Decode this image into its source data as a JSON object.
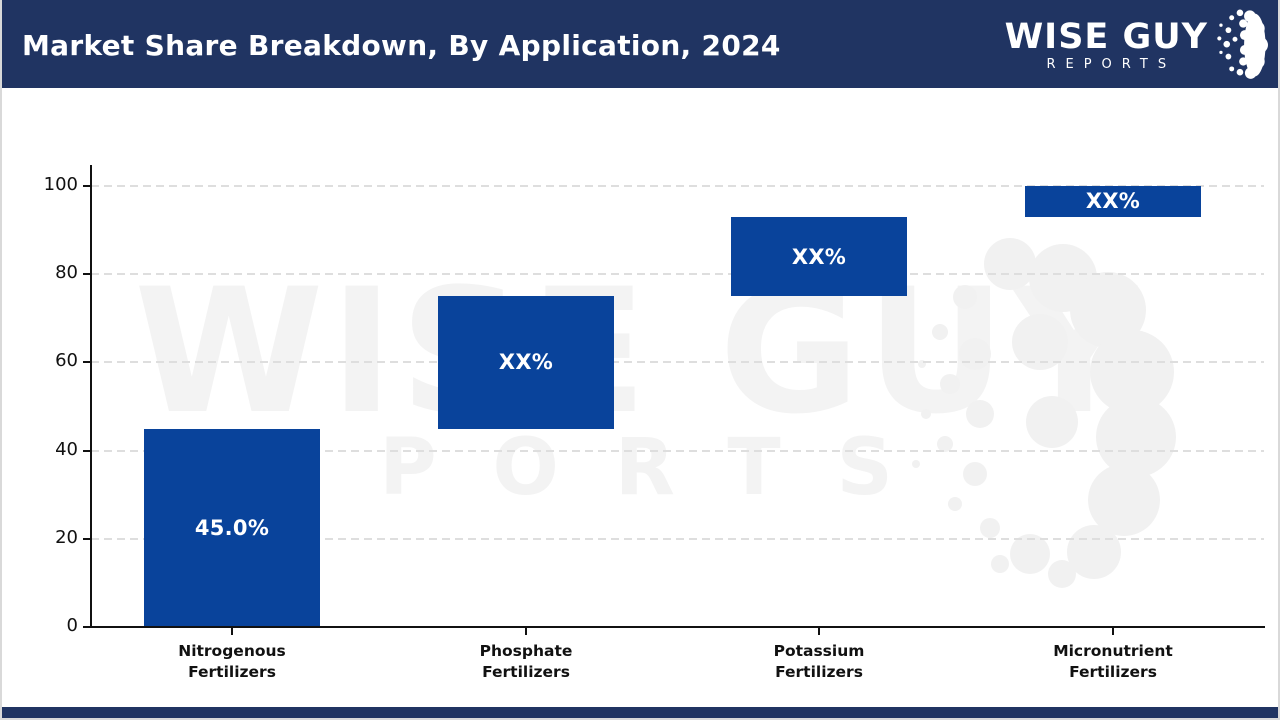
{
  "header": {
    "title": "Market Share Breakdown, By Application, 2024",
    "logo": {
      "name": "Wise Guy Reports",
      "line1": "WISE GUY",
      "line2": "REPORTS"
    }
  },
  "watermark": {
    "line1": "WISE GUY",
    "line2": "REPORTS"
  },
  "chart_data": {
    "type": "bar",
    "subtype": "waterfall",
    "title": "Market Share Breakdown, By Application, 2024",
    "categories": [
      "Nitrogenous Fertilizers",
      "Phosphate Fertilizers",
      "Potassium Fertilizers",
      "Micronutrient Fertilizers"
    ],
    "category_lines": [
      [
        "Nitrogenous",
        "Fertilizers"
      ],
      [
        "Phosphate",
        "Fertilizers"
      ],
      [
        "Potassium",
        "Fertilizers"
      ],
      [
        "Micronutrient",
        "Fertilizers"
      ]
    ],
    "bars": [
      {
        "category": "Nitrogenous Fertilizers",
        "start": 0,
        "end": 45,
        "label": "45.0%"
      },
      {
        "category": "Phosphate Fertilizers",
        "start": 45,
        "end": 75,
        "label": "XX%"
      },
      {
        "category": "Potassium Fertilizers",
        "start": 75,
        "end": 93,
        "label": "XX%"
      },
      {
        "category": "Micronutrient Fertilizers",
        "start": 93,
        "end": 100,
        "label": "XX%"
      }
    ],
    "ylim": [
      0,
      100
    ],
    "yticks": [
      0,
      20,
      40,
      60,
      80,
      100
    ],
    "xlabel": "",
    "ylabel": "",
    "grid": "horizontal-dashed",
    "legend": "none",
    "bar_color": "#09439b",
    "bar_label_color": "#ffffff"
  },
  "colors": {
    "header_bg": "#203462",
    "footer_bg": "#203462",
    "bar": "#09439b",
    "gridline": "#dedede",
    "axis": "#111111",
    "watermark": "#f3f3f3",
    "page_bg": "#ffffff",
    "border": "#d9d9d9"
  }
}
